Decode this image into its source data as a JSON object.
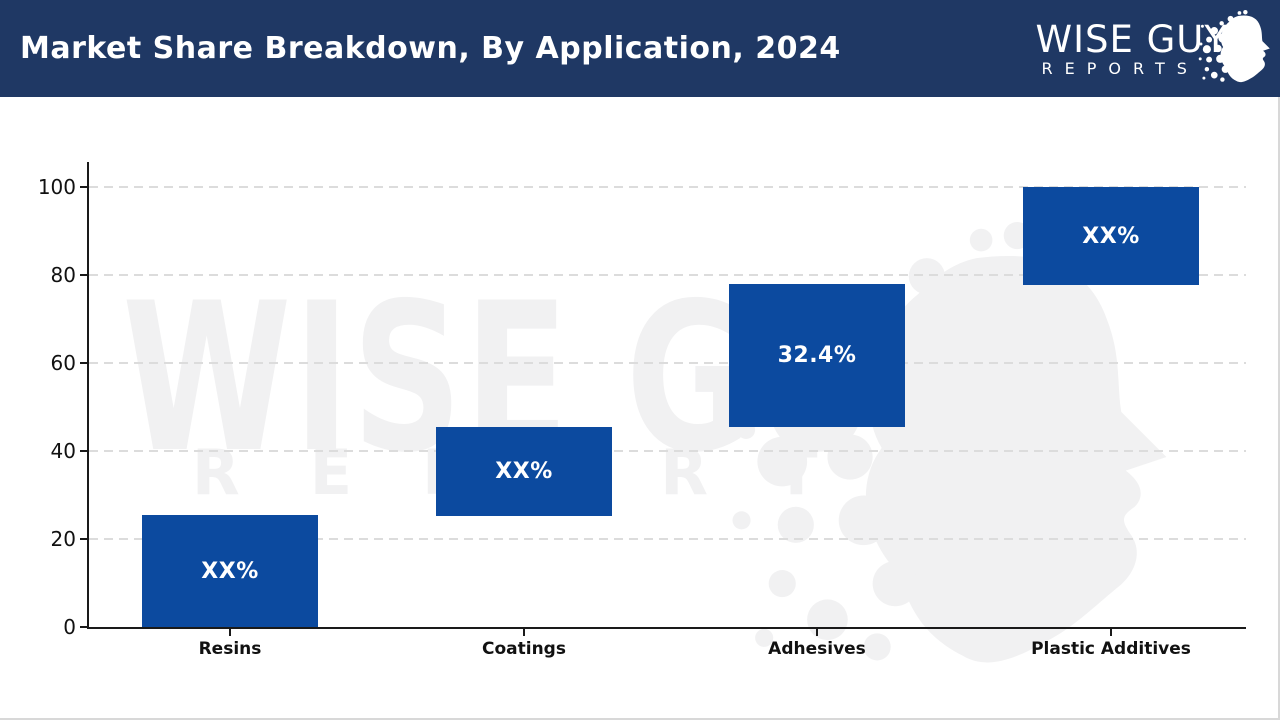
{
  "header": {
    "title": "Market Share Breakdown, By Application, 2024",
    "background_color": "#1f3864",
    "logo": {
      "brand_line1": "WISE GUY",
      "brand_line2": "REPORTS"
    }
  },
  "watermark": {
    "line1": "WISE GU",
    "line2": "REPORTS"
  },
  "chart_data": {
    "type": "bar",
    "subtype": "floating-segment-waterfall",
    "title": "Market Share Breakdown, By Application, 2024",
    "categories": [
      "Resins",
      "Coatings",
      "Adhesives",
      "Plastic Additives"
    ],
    "segments": [
      {
        "category": "Resins",
        "start": 0,
        "end": 25.4,
        "value_label": "XX%"
      },
      {
        "category": "Coatings",
        "start": 25.2,
        "end": 45.4,
        "value_label": "XX%"
      },
      {
        "category": "Adhesives",
        "start": 45.5,
        "end": 77.9,
        "value_label": "32.4%"
      },
      {
        "category": "Plastic Additives",
        "start": 77.7,
        "end": 100,
        "value_label": "XX%"
      }
    ],
    "xlabel": "",
    "ylabel": "",
    "ylim": [
      0,
      100
    ],
    "yticks": [
      0,
      20,
      40,
      60,
      80,
      100
    ],
    "grid": {
      "horizontal": true,
      "line_style": "dashed",
      "color": "#dcdcdc"
    },
    "bar_color": "#0c4a9f",
    "axis_color": "#1a1a1a",
    "bar_label_color": "#ffffff",
    "legend": "none"
  }
}
